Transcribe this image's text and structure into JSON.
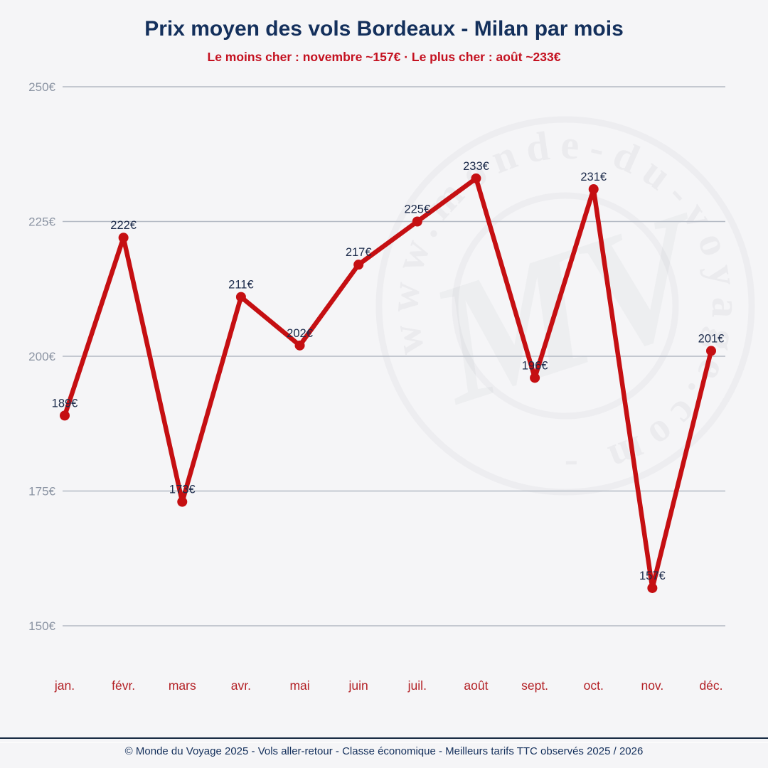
{
  "title": "Prix moyen des vols Bordeaux - Milan par mois",
  "subtitle": "Le moins cher : novembre ~157€ · Le plus cher : août ~233€",
  "footer": "© Monde du Voyage 2025 - Vols aller-retour - Classe économique - Meilleurs tarifs TTC observés 2025 / 2026",
  "watermark": {
    "ring_text": "www.monde-du-voyage.com -",
    "center_text": "MV"
  },
  "colors": {
    "background": "#f5f5f7",
    "title": "#14305c",
    "subtitle": "#c41120",
    "line": "#c50f12",
    "point": "#c50f12",
    "gridline": "#b4bac4",
    "axis_label": "#8b94a3",
    "month_label": "#b32025",
    "point_label": "#1b2a4a",
    "footer_line": "#152a42",
    "footer_text": "#14305c",
    "watermark": "#6a6f7a"
  },
  "chart_data": {
    "type": "line",
    "title": "Prix moyen des vols Bordeaux - Milan par mois",
    "subtitle": "Le moins cher : novembre ~157€ · Le plus cher : août ~233€",
    "categories": [
      "jan.",
      "févr.",
      "mars",
      "avr.",
      "mai",
      "juin",
      "juil.",
      "août",
      "sept.",
      "oct.",
      "nov.",
      "déc."
    ],
    "values": [
      189,
      222,
      173,
      211,
      202,
      217,
      225,
      233,
      196,
      231,
      157,
      201
    ],
    "unit": "€",
    "xlabel": "",
    "ylabel": "",
    "ylim": [
      150,
      250
    ],
    "yticks": [
      150,
      175,
      200,
      225,
      250
    ],
    "ytick_labels": [
      "150€",
      "175€",
      "200€",
      "225€",
      "250€"
    ],
    "grid": true,
    "legend": false,
    "min_month": "novembre",
    "min_value": 157,
    "max_month": "août",
    "max_value": 233
  }
}
